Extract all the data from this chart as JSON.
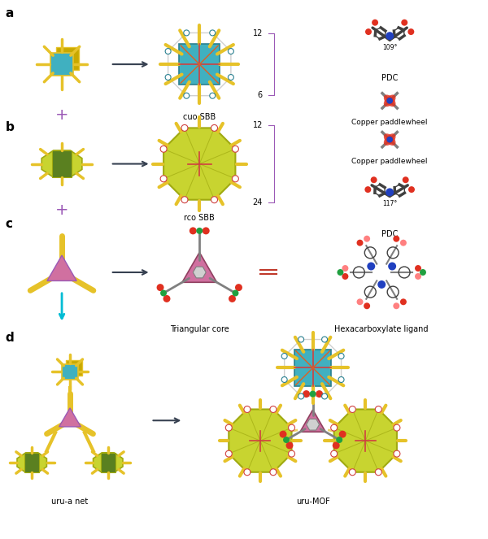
{
  "panels": [
    "a",
    "b",
    "c",
    "d"
  ],
  "bg_color": "#ffffff",
  "panel_label_color": "#000000",
  "panel_label_fontsize": 11,
  "arrow_color": "#374151",
  "plus_color": "#9b59b6",
  "down_arrow_color": "#00bcd4",
  "colors": {
    "yellow": "#e6c229",
    "dark_yellow": "#c8a900",
    "teal": "#40b0c0",
    "dark_teal": "#2a8090",
    "lime": "#c8d430",
    "dark_lime": "#a0aa10",
    "dark_green": "#5a8020",
    "purple": "#9b59b6",
    "mauve": "#c06090",
    "pink_triangle": "#d070a0",
    "gray": "#808080",
    "red": "#e03020",
    "blue": "#2040c0",
    "green": "#20a040",
    "white": "#ffffff",
    "light_gray": "#d0d0d0",
    "dark_gray": "#404040",
    "equiv_color": "#c0392b"
  }
}
